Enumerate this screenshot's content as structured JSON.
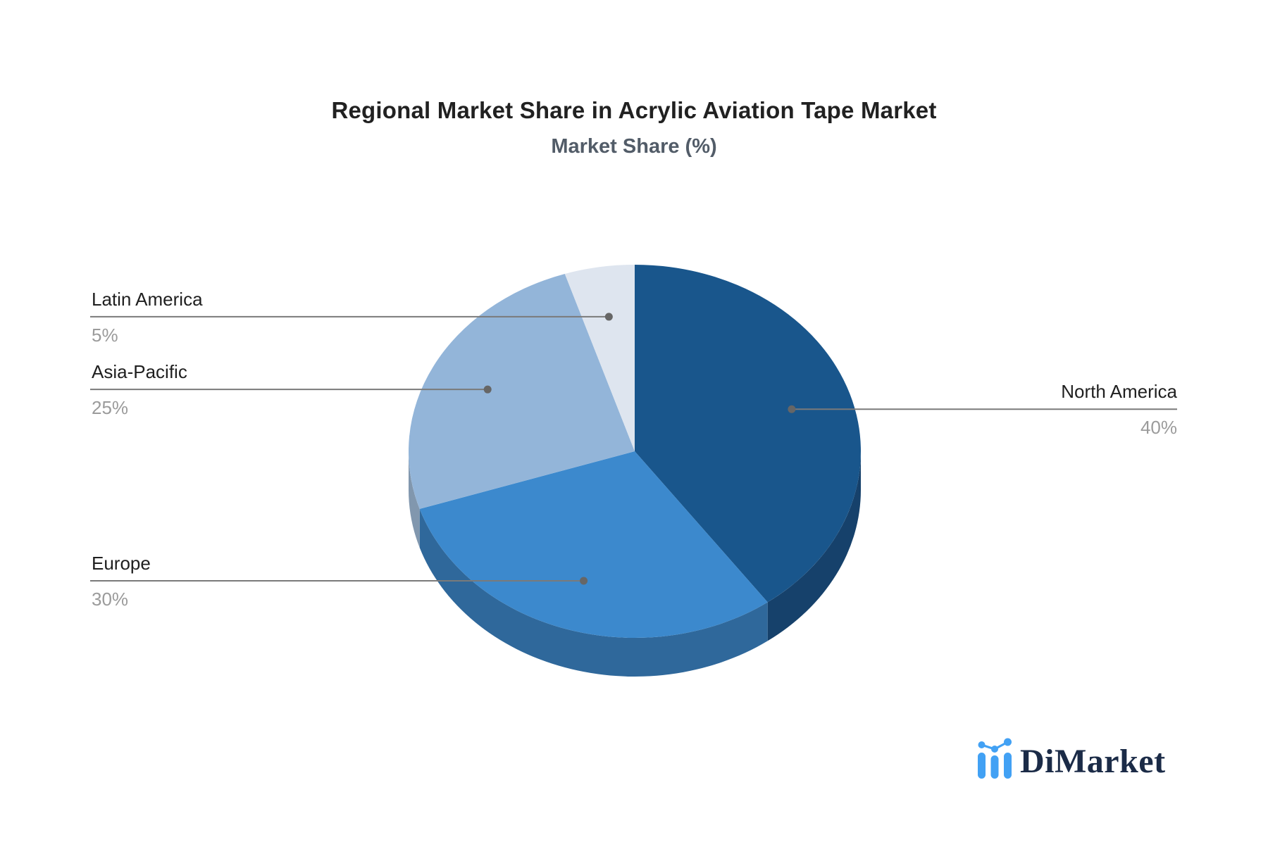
{
  "title": "Regional Market Share in Acrylic Aviation Tape Market",
  "subtitle": "Market Share (%)",
  "colors": {
    "background": "#FFFFFF",
    "title": "#212121",
    "subtitle": "#525C68",
    "label_name": "#1F1F1F",
    "label_value": "#9B9B9B",
    "leader_line": "#7A7A7A",
    "leader_dot": "#666666"
  },
  "chart_data": {
    "type": "pie",
    "title": "Regional Market Share in Acrylic Aviation Tape Market",
    "subtitle": "Market Share (%)",
    "unit": "%",
    "effect": "3d-depth",
    "start_angle_deg": 0,
    "direction": "clockwise",
    "legend": "none",
    "label_style": "external-leader-lines",
    "slices": [
      {
        "label": "North America",
        "value": 40,
        "display": "40%",
        "color": "#19568C",
        "side_color": "#16416B"
      },
      {
        "label": "Europe",
        "value": 30,
        "display": "30%",
        "color": "#3C89CD",
        "side_color": "#2F689B"
      },
      {
        "label": "Asia-Pacific",
        "value": 25,
        "display": "25%",
        "color": "#93B5D9",
        "side_color": "#8197AE"
      },
      {
        "label": "Latin America",
        "value": 5,
        "display": "5%",
        "color": "#DEE5EF"
      }
    ]
  },
  "logo": {
    "text": "DiMarket",
    "icon": "bar-line-chart-icon",
    "icon_color": "#42A1F4",
    "text_color": "#1B2B47"
  }
}
